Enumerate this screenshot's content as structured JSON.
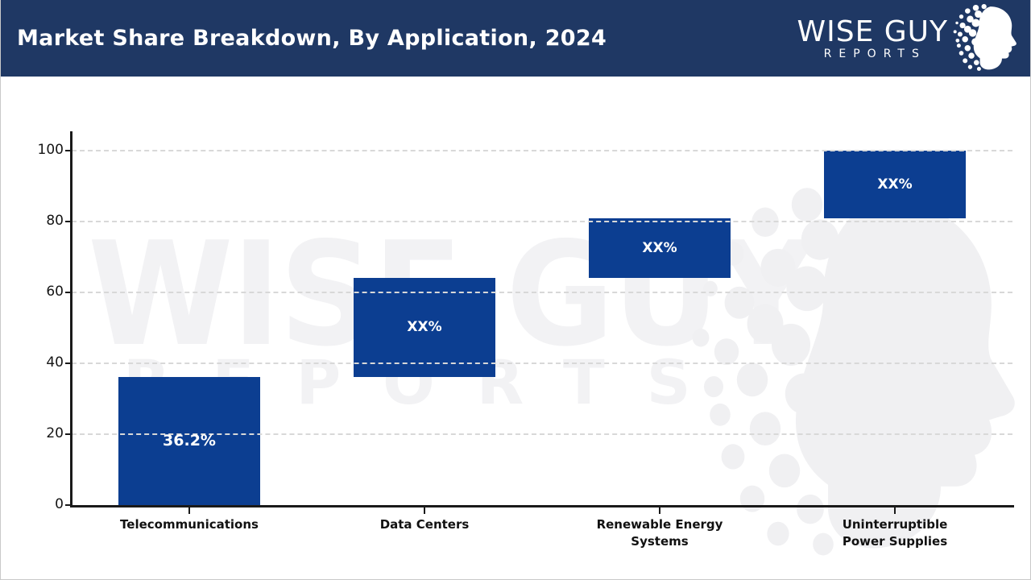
{
  "header": {
    "title": "Market Share Breakdown, By Application, 2024",
    "logo": {
      "brand": "WISE GUY",
      "sub": "REPORTS"
    }
  },
  "watermark": {
    "brand": "WISE GUY",
    "sub": "REPORTS"
  },
  "colors": {
    "header_bg": "#1f3864",
    "bar": "#0c3e91",
    "gridline": "#d8d8d8",
    "axis": "#1a1a1a",
    "bar_label_text": "#ffffff",
    "watermark": "#f2f2f4"
  },
  "chart_data": {
    "type": "bar",
    "variant": "floating-segment-breakdown",
    "title": "Market Share Breakdown, By Application, 2024",
    "categories": [
      [
        "Telecommunications"
      ],
      [
        "Data Centers"
      ],
      [
        "Renewable Energy",
        "Systems"
      ],
      [
        "Uninterruptible",
        "Power Supplies"
      ]
    ],
    "segments": [
      {
        "name": "Telecommunications",
        "start": 0,
        "end": 36.2,
        "label": "36.2%"
      },
      {
        "name": "Data Centers",
        "start": 36.2,
        "end": 64.1,
        "label": "XX%"
      },
      {
        "name": "Renewable Energy Systems",
        "start": 64.1,
        "end": 80.9,
        "label": "XX%"
      },
      {
        "name": "Uninterruptible Power Supplies",
        "start": 80.9,
        "end": 100,
        "label": "XX%"
      }
    ],
    "yticks": [
      0,
      20,
      40,
      60,
      80,
      100
    ],
    "ylim": [
      0,
      105
    ],
    "xlabel": "",
    "ylabel": "",
    "grid": "horizontal-dashed",
    "legend": "none"
  }
}
